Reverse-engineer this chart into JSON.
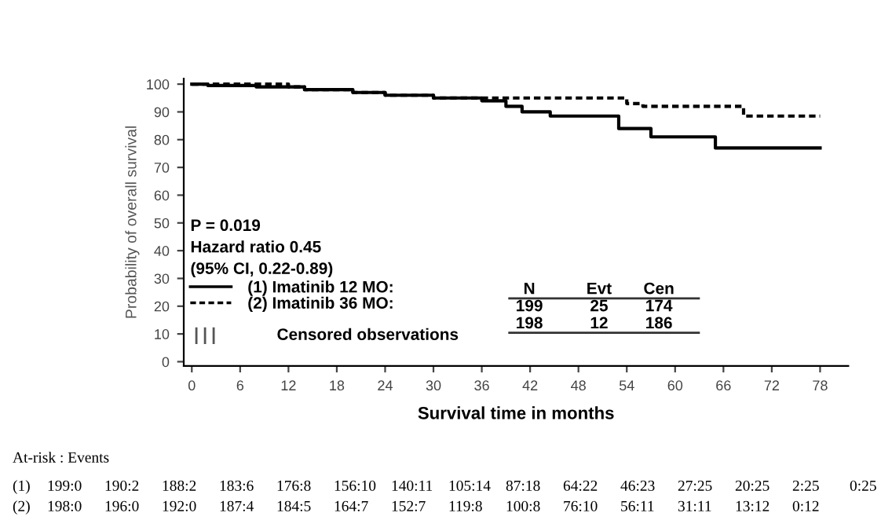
{
  "chart_data": {
    "type": "step",
    "xlabel": "Survival time in months",
    "ylabel": "Probability of overall survival",
    "xlim": [
      -1,
      81.5
    ],
    "ylim": [
      -1.5,
      102
    ],
    "xticks": [
      0,
      6,
      12,
      18,
      24,
      30,
      36,
      42,
      48,
      54,
      60,
      66,
      72,
      78
    ],
    "yticks": [
      0,
      10,
      20,
      30,
      40,
      50,
      60,
      70,
      80,
      90,
      100
    ],
    "grid": false,
    "legend": "bottom left",
    "series": [
      {
        "name": "(1) Imatinib 12 MO:",
        "color": "#000000",
        "line_style": "solid",
        "x": [
          0,
          2,
          8,
          12,
          14,
          20,
          24,
          30,
          36,
          39,
          41,
          44.5,
          53,
          57,
          65,
          78
        ],
        "values": [
          100,
          99.5,
          99,
          99,
          98,
          97,
          96,
          95,
          94,
          92,
          90,
          88.5,
          84,
          81,
          77,
          77
        ]
      },
      {
        "name": "(2) Imatinib 36 MO:",
        "color": "#000000",
        "line_style": "dashed",
        "x": [
          0,
          12,
          14,
          20,
          24,
          30,
          36,
          54,
          56,
          68.5,
          78
        ],
        "values": [
          100,
          99,
          98,
          97,
          96,
          95,
          95,
          93,
          92,
          88.5,
          88.5
        ]
      }
    ],
    "annotations": [
      "P = 0.019",
      "Hazard ratio 0.45",
      "(95% CI, 0.22-0.89)",
      "N",
      "Evt",
      "Cen",
      "199",
      "25",
      "174",
      "198",
      "12",
      "186",
      "Censored observations",
      "At-risk : Events",
      "(1)",
      "199:0",
      "190:2",
      "188:2",
      "183:6",
      "176:8",
      "156:10",
      "140:11",
      "105:14",
      "87:18",
      "64:22",
      "46:23",
      "27:25",
      "20:25",
      "2:25",
      "0:25",
      "(2)",
      "198:0",
      "196:0",
      "192:0",
      "187:4",
      "184:5",
      "164:7",
      "152:7",
      "119:8",
      "100:8",
      "76:10",
      "56:11",
      "31:11",
      "13:12",
      "0:12"
    ]
  }
}
